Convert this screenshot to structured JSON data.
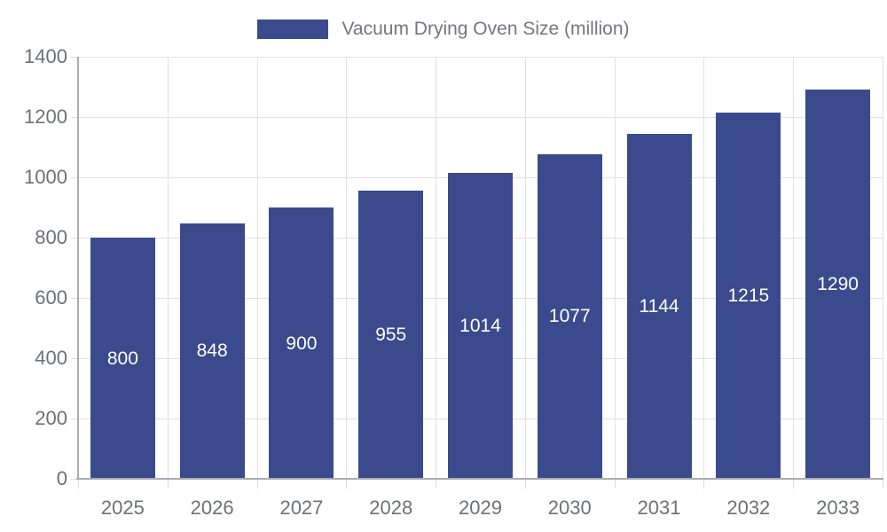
{
  "chart_data": {
    "type": "bar",
    "title": "",
    "legend_label": "Vacuum Drying Oven Size (million)",
    "legend_position": "top-center",
    "categories": [
      "2025",
      "2026",
      "2027",
      "2028",
      "2029",
      "2030",
      "2031",
      "2032",
      "2033"
    ],
    "values": [
      800,
      848,
      900,
      955,
      1014,
      1077,
      1144,
      1215,
      1290
    ],
    "series": [
      {
        "name": "Vacuum Drying Oven Size (million)",
        "values": [
          800,
          848,
          900,
          955,
          1014,
          1077,
          1144,
          1215,
          1290
        ]
      }
    ],
    "xlabel": "",
    "ylabel": "",
    "ylim": [
      0,
      1400
    ],
    "ytick_interval": 200,
    "yticks": [
      0,
      200,
      400,
      600,
      800,
      1000,
      1200,
      1400
    ],
    "grid": true,
    "value_labels": "inside-center"
  },
  "colors": {
    "bar": "#3A4A8C",
    "value_label": "#FFFFFF",
    "axis_text": "#6E7079",
    "legend_text": "#74767C",
    "gridline": "#E0E0E6",
    "axis_line": "#A9ACB3",
    "tick": "#DCDCE0",
    "background": "#FFFFFF"
  }
}
